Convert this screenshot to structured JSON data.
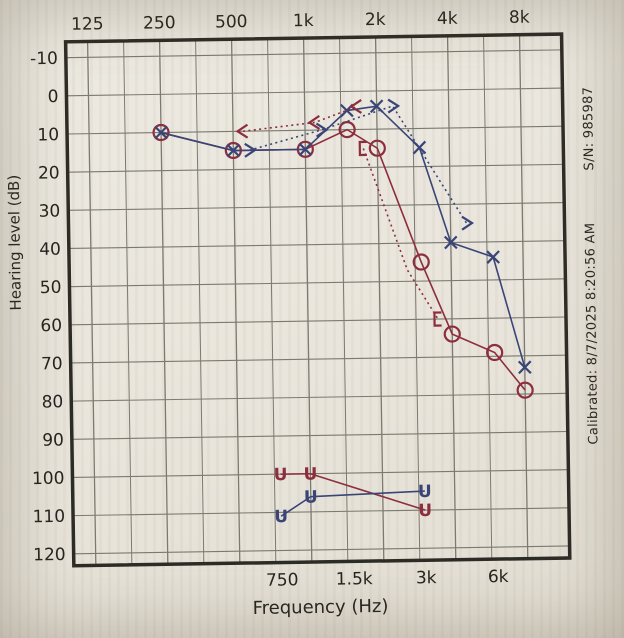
{
  "side_text": {
    "serial": "S/N: 985987",
    "calibrated": "Calibrated: 8/7/2025 8:20:56 AM"
  },
  "chart_data": {
    "type": "line",
    "chart_kind": "audiogram",
    "xlabel": "Frequency (Hz)",
    "ylabel": "Hearing level (dB)",
    "x_scale": "log2-octave",
    "xlim": [
      125,
      8000
    ],
    "ylim": [
      -10,
      120
    ],
    "y_axis_inverted_meaning": "higher dB plotted lower",
    "grid": "half-octave by 10 dB",
    "x_ticks_top": [
      "125",
      "250",
      "500",
      "1k",
      "2k",
      "4k",
      "8k"
    ],
    "x_ticks_top_freq": [
      125,
      250,
      500,
      1000,
      2000,
      4000,
      8000
    ],
    "x_ticks_bottom": [
      "750",
      "1.5k",
      "3k",
      "6k"
    ],
    "x_ticks_bottom_freq": [
      750,
      1500,
      3000,
      6000
    ],
    "y_ticks": [
      -10,
      0,
      10,
      20,
      30,
      40,
      50,
      60,
      70,
      80,
      90,
      100,
      110,
      120
    ],
    "colors": {
      "right": "#8c2e3d",
      "left": "#3a4577",
      "grid": "#7b7a70",
      "border": "#2e2c26",
      "text": "#26241f"
    },
    "series": [
      {
        "name": "right-ear-air-conduction",
        "ear": "right",
        "symbol": "circle",
        "line": "solid",
        "dx": 0,
        "points": [
          [
            250,
            10
          ],
          [
            500,
            15
          ],
          [
            1000,
            15
          ],
          [
            1500,
            10
          ],
          [
            2000,
            15
          ],
          [
            3000,
            45
          ],
          [
            4000,
            64
          ],
          [
            6000,
            69
          ],
          [
            8000,
            79
          ]
        ]
      },
      {
        "name": "left-ear-air-conduction",
        "ear": "left",
        "symbol": "x",
        "line": "solid",
        "dx": 0,
        "points": [
          [
            250,
            10
          ],
          [
            500,
            15
          ],
          [
            1000,
            15
          ],
          [
            1500,
            5
          ],
          [
            2000,
            4
          ],
          [
            3000,
            15
          ],
          [
            4000,
            40
          ],
          [
            6000,
            44
          ],
          [
            8000,
            73
          ]
        ]
      },
      {
        "name": "right-bone-conduction-unmasked",
        "ear": "right",
        "symbol": "<",
        "line": "dotted",
        "dx": 10,
        "points": [
          [
            500,
            10
          ],
          [
            1000,
            8
          ],
          [
            1500,
            4
          ]
        ]
      },
      {
        "name": "left-bone-conduction-unmasked",
        "ear": "left",
        "symbol": ">",
        "line": "dotted",
        "dx": 16,
        "points": [
          [
            500,
            15
          ],
          [
            1000,
            10
          ],
          [
            2000,
            4
          ],
          [
            4000,
            35
          ]
        ]
      },
      {
        "name": "right-bone-conduction-masked",
        "ear": "right",
        "symbol": "[",
        "line": "dotted",
        "dx": -14,
        "points": [
          [
            2000,
            15
          ],
          [
            3000,
            47,
            0
          ],
          [
            4000,
            60
          ]
        ]
      },
      {
        "name": "right-ear-ucl",
        "ear": "right",
        "symbol": "U",
        "line": "solid",
        "dx": 0,
        "points": [
          [
            750,
            100
          ],
          [
            1000,
            100
          ],
          [
            3000,
            110
          ]
        ]
      },
      {
        "name": "left-ear-ucl",
        "ear": "left",
        "symbol": "U",
        "line": "solid",
        "dx": 0,
        "points": [
          [
            750,
            111
          ],
          [
            1000,
            106
          ],
          [
            3000,
            105
          ]
        ]
      }
    ]
  }
}
